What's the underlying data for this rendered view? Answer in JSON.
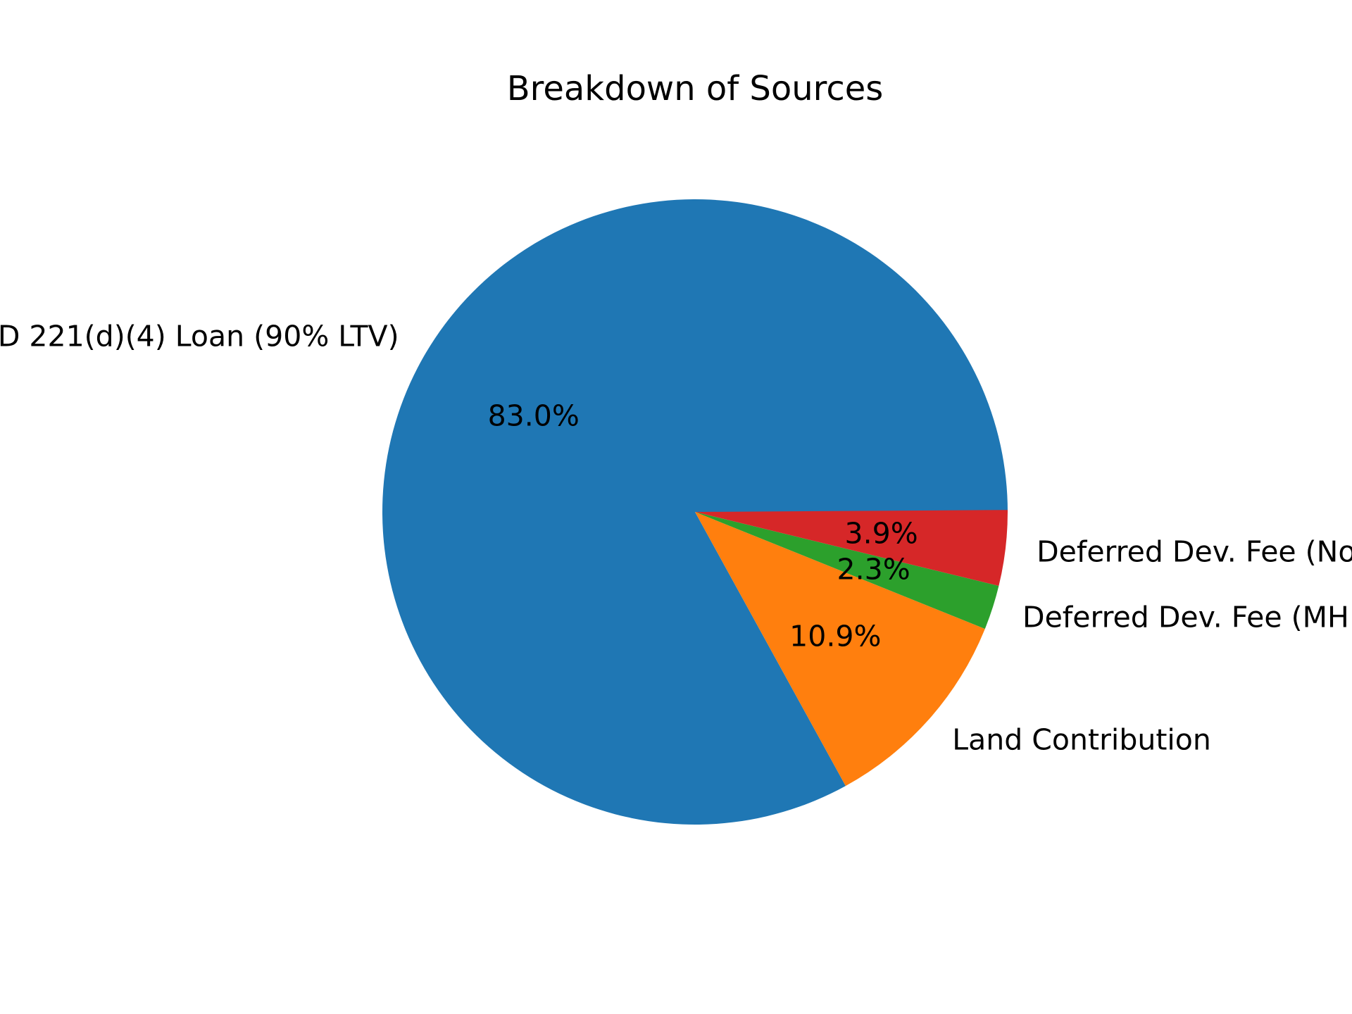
{
  "chart_data": {
    "type": "pie",
    "title": "Breakdown of Sources",
    "background_color": "#ffffff",
    "text_color": "#000000",
    "start_angle_deg": 0,
    "counterclockwise": true,
    "legend": "none",
    "slices": [
      {
        "label": "D 221(d)(4) Loan (90% LTV)",
        "value_pct": 83.0,
        "pct_label": "83.0%",
        "color": "#1f77b4"
      },
      {
        "label": "Land Contribution",
        "value_pct": 10.9,
        "pct_label": "10.9%",
        "color": "#ff7f0e"
      },
      {
        "label": "Deferred Dev. Fee (MH",
        "value_pct": 2.3,
        "pct_label": "2.3%",
        "color": "#2ca02c"
      },
      {
        "label": "Deferred Dev. Fee (No",
        "value_pct": 3.9,
        "pct_label": "3.9%",
        "color": "#d62728"
      }
    ]
  }
}
